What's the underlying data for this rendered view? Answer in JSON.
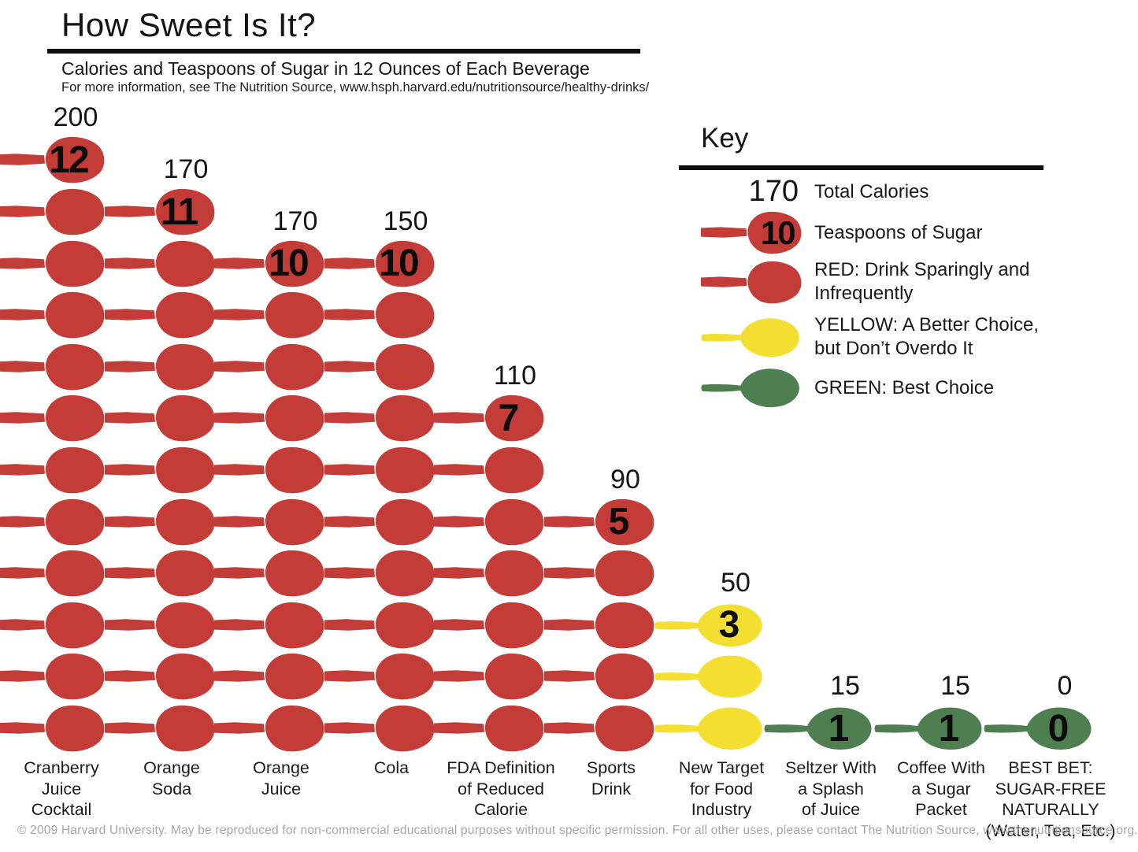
{
  "header": {
    "title": "How Sweet Is It?",
    "subtitle": "Calories and Teaspoons of Sugar in 12 Ounces of Each Beverage",
    "info": "For more information, see The Nutrition Source, www.hsph.harvard.edu/nutritionsource/healthy-drinks/"
  },
  "key": {
    "heading": "Key",
    "rows": [
      {
        "type": "calories-sample",
        "value": "170",
        "label_lines": [
          "Total Calories"
        ]
      },
      {
        "type": "spoon",
        "color": "red",
        "number": "10",
        "label_lines": [
          "Teaspoons of Sugar"
        ]
      },
      {
        "type": "spoon",
        "color": "red",
        "label_lines": [
          "RED: Drink Sparingly and",
          "Infrequently"
        ]
      },
      {
        "type": "spoon",
        "color": "yellow",
        "label_lines": [
          "YELLOW: A Better Choice,",
          "but Don’t Overdo It"
        ]
      },
      {
        "type": "spoon",
        "color": "green",
        "label_lines": [
          "GREEN: Best Choice"
        ]
      }
    ]
  },
  "chart_data": {
    "type": "pictogram",
    "title": "How Sweet Is It?",
    "subtitle": "Calories and Teaspoons of Sugar in 12 Ounces of Each Beverage",
    "icon_unit": "1 spoon = 1 teaspoon of sugar",
    "legend": {
      "red": "Drink Sparingly and Infrequently",
      "yellow": "A Better Choice, but Don’t Overdo It",
      "green": "Best Choice"
    },
    "categories": [
      "Cranberry Juice Cocktail",
      "Orange Soda",
      "Orange Juice",
      "Cola",
      "FDA Definition of Reduced Calorie",
      "Sports Drink",
      "New Target for Food Industry",
      "Seltzer With a Splash of Juice",
      "Coffee With a Sugar Packet",
      "BEST BET: SUGAR-FREE NATURALLY (Water, Tea, Etc.)"
    ],
    "series": [
      {
        "name": "Total Calories",
        "values": [
          200,
          170,
          170,
          150,
          110,
          90,
          50,
          15,
          15,
          0
        ]
      },
      {
        "name": "Teaspoons of Sugar",
        "values": [
          12,
          11,
          10,
          10,
          7,
          5,
          3,
          1,
          1,
          0
        ]
      }
    ],
    "columns": [
      {
        "label": "Cranberry Juice Cocktail",
        "label_lines": [
          "Cranberry",
          "Juice",
          "Cocktail"
        ],
        "calories": 200,
        "teaspoons": 12,
        "color": "red"
      },
      {
        "label": "Orange Soda",
        "label_lines": [
          "Orange",
          "Soda"
        ],
        "calories": 170,
        "teaspoons": 11,
        "color": "red"
      },
      {
        "label": "Orange Juice",
        "label_lines": [
          "Orange",
          "Juice"
        ],
        "calories": 170,
        "teaspoons": 10,
        "color": "red"
      },
      {
        "label": "Cola",
        "label_lines": [
          "Cola"
        ],
        "calories": 150,
        "teaspoons": 10,
        "color": "red"
      },
      {
        "label": "FDA Definition of Reduced Calorie",
        "label_lines": [
          "FDA Definition",
          "of Reduced",
          "Calorie"
        ],
        "calories": 110,
        "teaspoons": 7,
        "color": "red"
      },
      {
        "label": "Sports Drink",
        "label_lines": [
          "Sports",
          "Drink"
        ],
        "calories": 90,
        "teaspoons": 5,
        "color": "red"
      },
      {
        "label": "New Target for Food Industry",
        "label_lines": [
          "New Target",
          "for Food",
          "Industry"
        ],
        "calories": 50,
        "teaspoons": 3,
        "color": "yellow"
      },
      {
        "label": "Seltzer With a Splash of Juice",
        "label_lines": [
          "Seltzer With",
          "a Splash",
          "of Juice"
        ],
        "calories": 15,
        "teaspoons": 1,
        "color": "green"
      },
      {
        "label": "Coffee With a Sugar Packet",
        "label_lines": [
          "Coffee With",
          "a Sugar",
          "Packet"
        ],
        "calories": 15,
        "teaspoons": 1,
        "color": "green"
      },
      {
        "label": "BEST BET: SUGAR-FREE NATURALLY (Water, Tea, Etc.)",
        "label_lines": [
          "BEST BET:",
          "SUGAR-FREE",
          "NATURALLY",
          "(Water, Tea, Etc.)"
        ],
        "calories": 0,
        "teaspoons": 0,
        "color": "green"
      }
    ]
  },
  "colors": {
    "red": "#C33C38",
    "yellow": "#F4DF31",
    "green": "#4F7E50",
    "ink": "#141414",
    "muted": "#a5a5a5"
  },
  "footer": {
    "copyright": "© 2009 Harvard University. May be reproduced for non-commercial educational purposes without specific permission. For all other uses, please contact The Nutrition Source, www.thenutritionsource.org."
  }
}
